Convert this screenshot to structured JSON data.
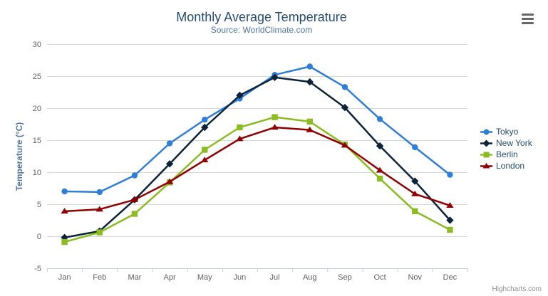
{
  "header": {
    "title": "Monthly Average Temperature",
    "subtitle": "Source: WorldClimate.com"
  },
  "credits": "Highcharts.com",
  "colors": {
    "title": "#274b6d",
    "subtitle": "#4d759e",
    "axis_title": "#4d759e",
    "axis_labels": "#606060",
    "gridline": "#d8d8d8",
    "axis_line": "#c0d0e0",
    "legend_text": "#274b6d",
    "burger_icon": "#666666",
    "credits_text": "#909090"
  },
  "chart_data": {
    "type": "line",
    "title": "Monthly Average Temperature",
    "subtitle": "Source: WorldClimate.com",
    "xlabel": "",
    "ylabel": "Temperature (°C)",
    "categories": [
      "Jan",
      "Feb",
      "Mar",
      "Apr",
      "May",
      "Jun",
      "Jul",
      "Aug",
      "Sep",
      "Oct",
      "Nov",
      "Dec"
    ],
    "ylim": [
      -5,
      30
    ],
    "ytick_step": 5,
    "yticks": [
      -5,
      0,
      5,
      10,
      15,
      20,
      25,
      30
    ],
    "grid": true,
    "legend_position": "right-middle-vertical",
    "series": [
      {
        "name": "Tokyo",
        "color": "#2f7ed8",
        "marker": "circle",
        "values": [
          7.0,
          6.9,
          9.5,
          14.5,
          18.2,
          21.5,
          25.2,
          26.5,
          23.3,
          18.3,
          13.9,
          9.6
        ]
      },
      {
        "name": "New York",
        "color": "#0d233a",
        "marker": "diamond",
        "values": [
          -0.2,
          0.8,
          5.7,
          11.3,
          17.0,
          22.0,
          24.8,
          24.1,
          20.1,
          14.1,
          8.6,
          2.5
        ]
      },
      {
        "name": "Berlin",
        "color": "#8bbc21",
        "marker": "square",
        "values": [
          -0.9,
          0.6,
          3.5,
          8.4,
          13.5,
          17.0,
          18.6,
          17.9,
          14.3,
          9.0,
          3.9,
          1.0
        ]
      },
      {
        "name": "London",
        "color": "#910000",
        "marker": "triangle",
        "values": [
          3.9,
          4.2,
          5.7,
          8.5,
          11.9,
          15.2,
          17.0,
          16.6,
          14.2,
          10.3,
          6.6,
          4.8
        ]
      }
    ]
  }
}
